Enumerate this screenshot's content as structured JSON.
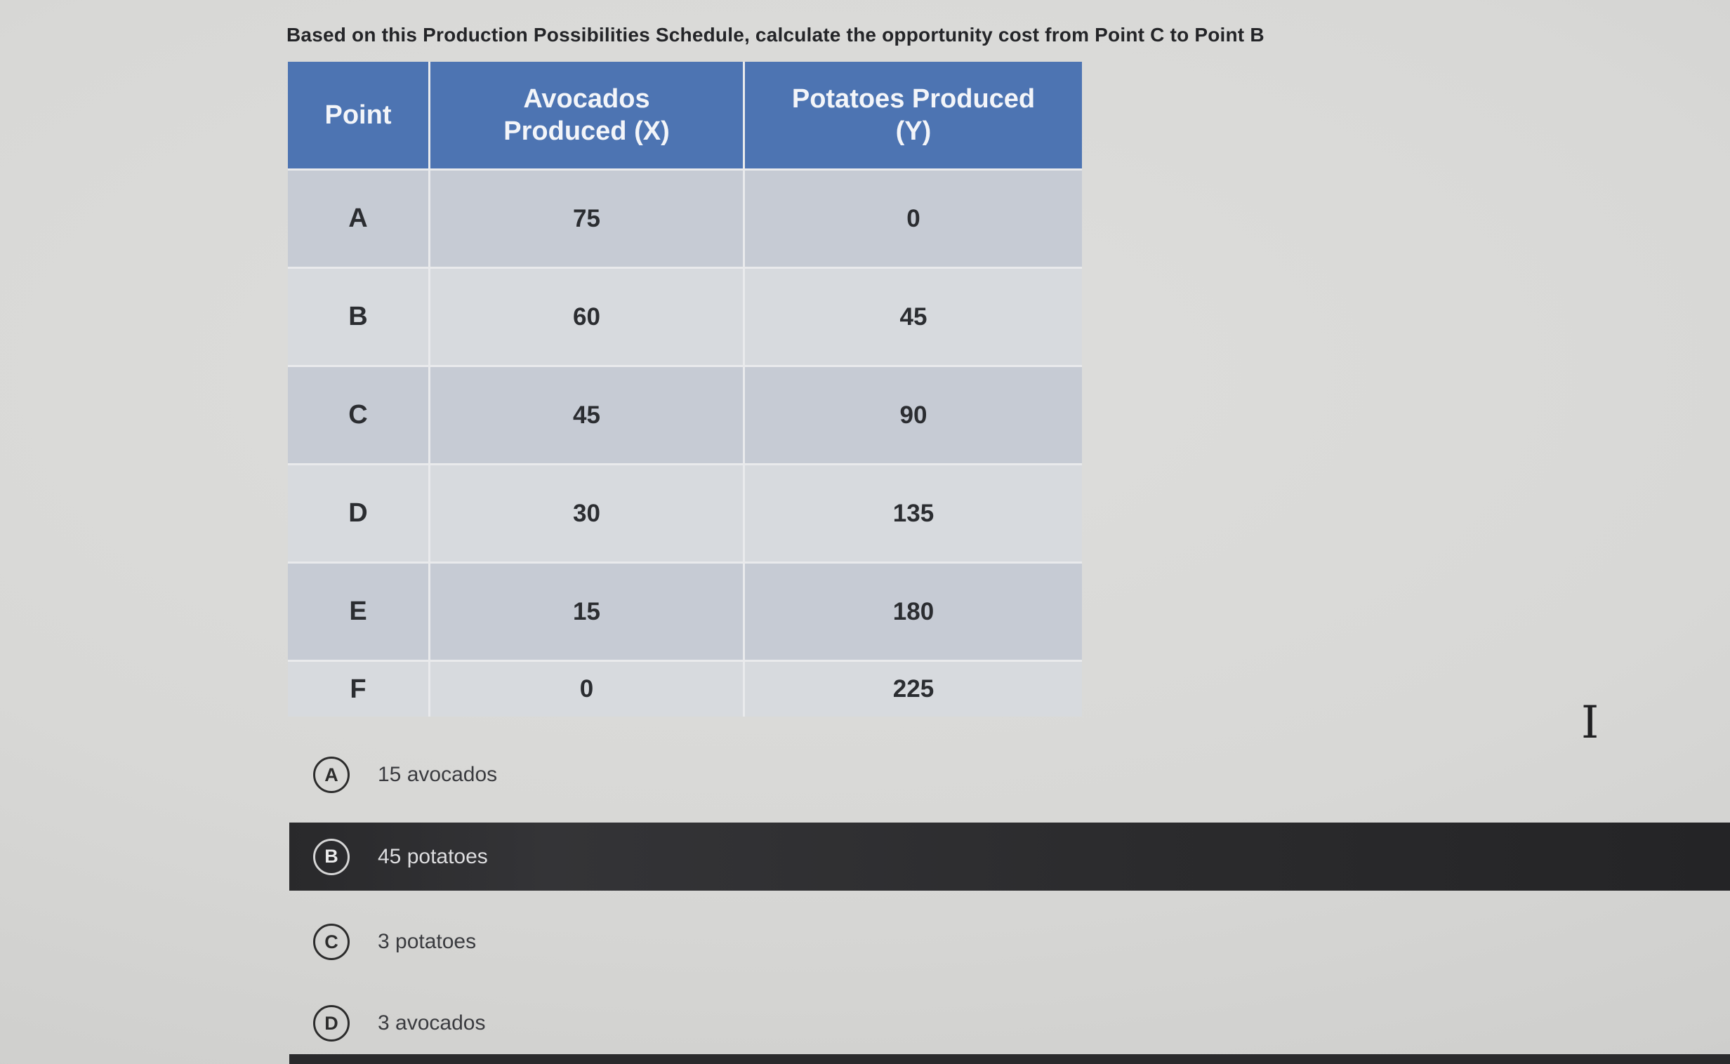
{
  "question": {
    "title": "Based on this Production Possibilities Schedule, calculate the opportunity cost from Point C to Point B"
  },
  "table": {
    "headers": [
      "Point",
      "Avocados\nProduced (X)",
      "Potatoes Produced\n(Y)"
    ],
    "rows": [
      {
        "point": "A",
        "avocados": "75",
        "potatoes": "0"
      },
      {
        "point": "B",
        "avocados": "60",
        "potatoes": "45"
      },
      {
        "point": "C",
        "avocados": "45",
        "potatoes": "90"
      },
      {
        "point": "D",
        "avocados": "30",
        "potatoes": "135"
      },
      {
        "point": "E",
        "avocados": "15",
        "potatoes": "180"
      },
      {
        "point": "F",
        "avocados": "0",
        "potatoes": "225"
      }
    ]
  },
  "options": [
    {
      "letter": "A",
      "label": "15 avocados",
      "selected": false
    },
    {
      "letter": "B",
      "label": "45 potatoes",
      "selected": true
    },
    {
      "letter": "C",
      "label": "3 potatoes",
      "selected": false
    },
    {
      "letter": "D",
      "label": "3 avocados",
      "selected": false
    }
  ],
  "cursor": {
    "glyph": "I"
  },
  "colors": {
    "table_header_bg": "#4d74b2",
    "row_dark": "#c6cbd4",
    "row_light": "#d7dade",
    "selected_option_bg": "#2b2b2d",
    "text": "#2b2d31"
  }
}
